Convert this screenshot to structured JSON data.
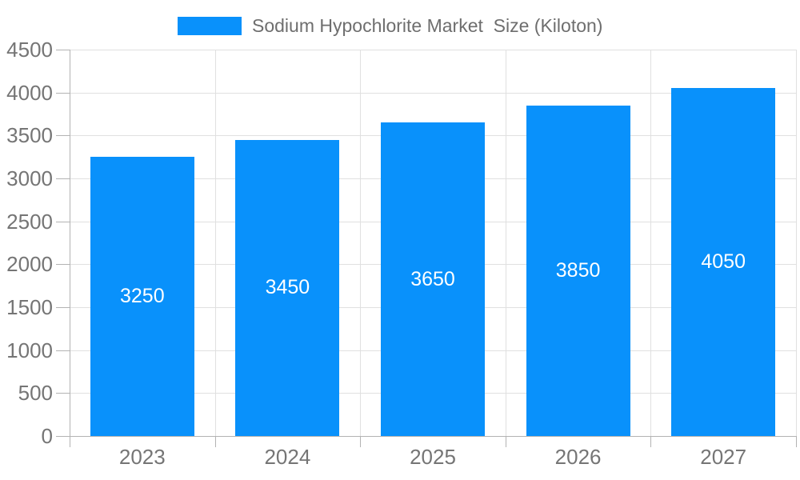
{
  "chart_data": {
    "type": "bar",
    "title": "Sodium Hypochlorite Market  Size (Kiloton)",
    "categories": [
      "2023",
      "2024",
      "2025",
      "2026",
      "2027"
    ],
    "series": [
      {
        "name": "Sodium Hypochlorite Market  Size (Kiloton)",
        "values": [
          3250,
          3450,
          3650,
          3850,
          4050
        ]
      }
    ],
    "value_labels": [
      "3250",
      "3450",
      "3650",
      "3850",
      "4050"
    ],
    "xlabel": "",
    "ylabel": "",
    "ylim": [
      0,
      4500
    ],
    "ytick_step": 500,
    "yticks": [
      0,
      500,
      1000,
      1500,
      2000,
      2500,
      3000,
      3500,
      4000,
      4500
    ],
    "ytick_labels": [
      "0",
      "500",
      "1000",
      "1500",
      "2000",
      "2500",
      "3000",
      "3500",
      "4000",
      "4500"
    ],
    "grid": true,
    "legend_position": "top",
    "colors": {
      "bar": "#0991FB",
      "value_label": "#FFFFFF",
      "axis_text": "#757575",
      "legend_text": "#6E6E6E",
      "gridline": "#E0E0E0",
      "axis_line": "#B3B3B3",
      "background": "#FFFFFF"
    }
  }
}
